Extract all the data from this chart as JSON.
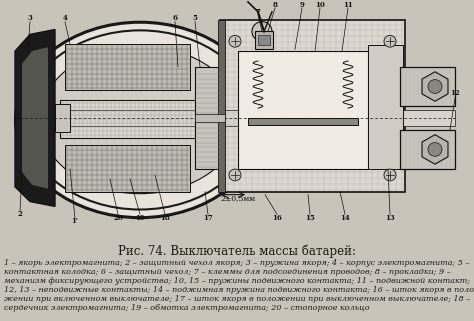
{
  "title": "Рис. 74. Выключатель массы батарей:",
  "title_fontsize": 8.5,
  "caption_lines": [
    "1 – якорь электромагнита; 2 – защитный чехол якоря; 3 – пружина якоря; 4 – корпус электромагнита; 5 –",
    "контактная колодка; 6 – защитный чехол; 7 – клеммы для подсоединения проводов; 8 – прокладки; 9 –",
    "механизм фиксирующего устройства; 10, 15 – пружины подвижного контакта; 11 – подвижной контакт;",
    "12, 13 – неподвижные контакты; 14 – поджимная пружина подвижного контакта; 16 – шток якоря в поло-",
    "жении при включенном выключателе; 17 – шток якоря в положении при выключенном выключателе; 18 –",
    "сердечник электромагнита; 19 – обмотка электромагнита; 20 – стопорное кольцо"
  ],
  "caption_fontsize": 5.8,
  "bg_color": "#c8c4ba",
  "text_color": "#1a1a1a",
  "fig_width": 4.74,
  "fig_height": 3.21,
  "dpi": 100,
  "diagram_bg": "#e8e4dc",
  "dark": "#111111",
  "hatch_dark": "#333333",
  "mid_gray": "#888880",
  "light_fill": "#d8d4cc",
  "black_fill": "#1a1a1a"
}
